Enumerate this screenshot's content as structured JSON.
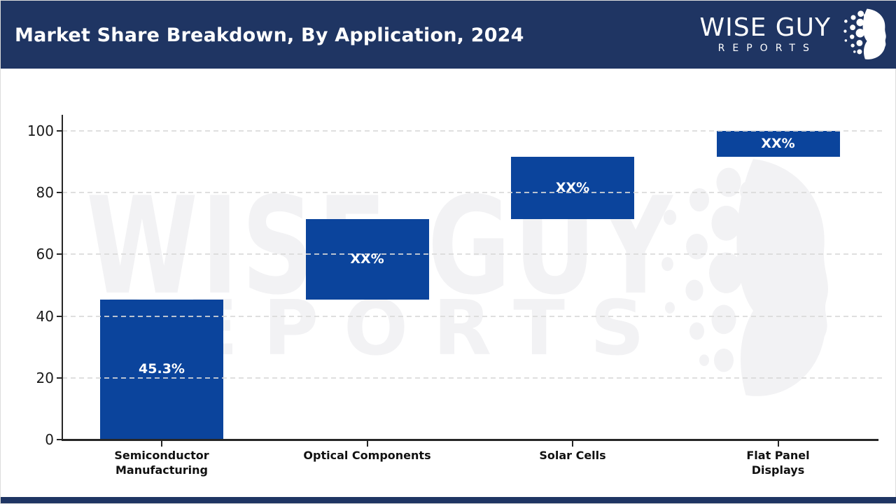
{
  "header": {
    "title": "Market Share Breakdown, By Application, 2024",
    "bg_color": "#1f3563",
    "logo": {
      "line1": "WISE GUY",
      "line2": "REPORTS"
    }
  },
  "watermark": {
    "line1": "WISE GUY",
    "line2": "REPORTS"
  },
  "chart_data": {
    "type": "bar",
    "subtype": "waterfall",
    "title": "Market Share Breakdown, By Application, 2024",
    "categories": [
      "Semiconductor Manufacturing",
      "Optical Components",
      "Solar Cells",
      "Flat Panel Displays"
    ],
    "category_lines": [
      [
        "Semiconductor",
        "Manufacturing"
      ],
      [
        "Optical Components"
      ],
      [
        "Solar Cells"
      ],
      [
        "Flat Panel",
        "Displays"
      ]
    ],
    "segments": [
      {
        "category": "Semiconductor Manufacturing",
        "label": "45.3%",
        "start": 0,
        "end": 45.3
      },
      {
        "category": "Optical Components",
        "label": "XX%",
        "start": 45.3,
        "end": 71.5
      },
      {
        "category": "Solar Cells",
        "label": "XX%",
        "start": 71.5,
        "end": 91.5
      },
      {
        "category": "Flat Panel Displays",
        "label": "XX%",
        "start": 91.5,
        "end": 100
      }
    ],
    "values_pct": [
      45.3,
      26.2,
      20.0,
      8.5
    ],
    "yticks": [
      0,
      20,
      40,
      60,
      80,
      100
    ],
    "ylim": [
      0,
      105
    ],
    "xlabel": "",
    "ylabel": "",
    "legend": "none",
    "grid": "horizontal dashed, drawn above bars",
    "bar_color": "#0b449c",
    "bar_label_color": "#ffffff",
    "axis_color": "#262626",
    "gridline_color": "#d9d9d9"
  }
}
